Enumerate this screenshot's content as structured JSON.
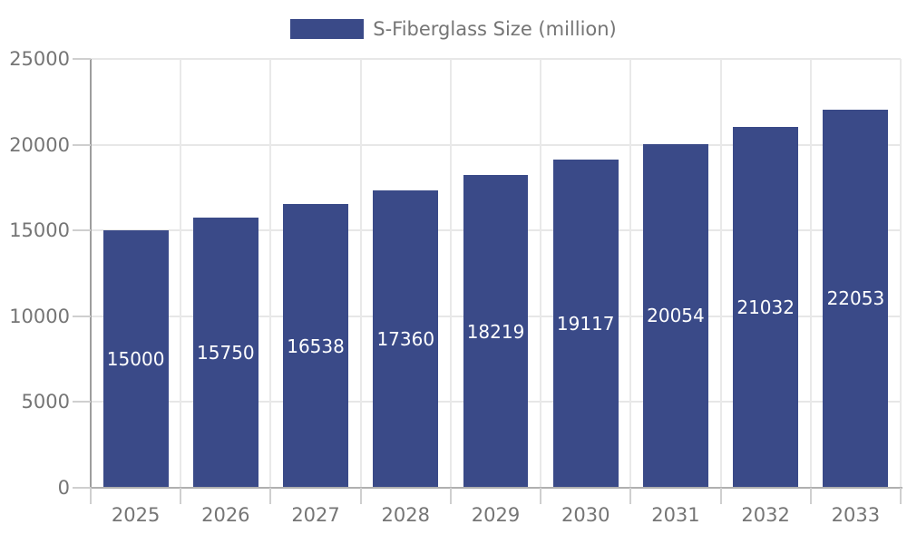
{
  "chart_data": {
    "type": "bar",
    "title": "",
    "series_name": "S-Fiberglass Size (million)",
    "categories": [
      "2025",
      "2026",
      "2027",
      "2028",
      "2029",
      "2030",
      "2031",
      "2032",
      "2033"
    ],
    "values": [
      15000,
      15750,
      16538,
      17360,
      18219,
      19117,
      20054,
      21032,
      22053
    ],
    "ylim": [
      0,
      25000
    ],
    "yticks": [
      0,
      5000,
      10000,
      15000,
      20000,
      25000
    ],
    "grid": true,
    "legend_position": "top",
    "bar_color": "#3A4A88",
    "bar_label_color": "#FFFFFF",
    "axis_text_color": "#757575",
    "gridline_color": "#E7E7E7"
  }
}
